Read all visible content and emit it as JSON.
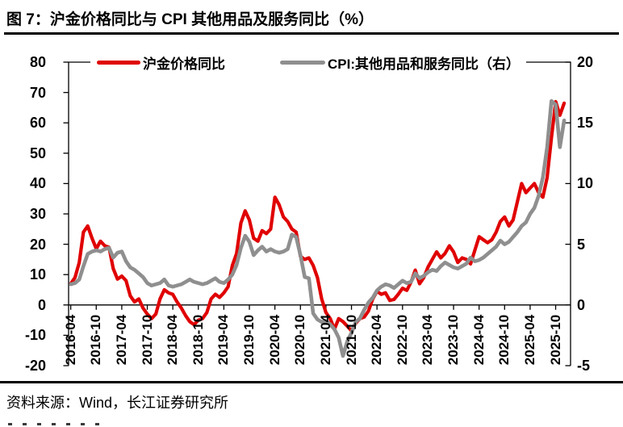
{
  "header": {
    "title": "图 7：沪金价格同比与 CPI 其他用品及服务同比（%）"
  },
  "footer": {
    "source": "资料来源：Wind，长江证券研究所"
  },
  "chart_data": {
    "type": "line",
    "title": "沪金价格同比与 CPI 其他用品及服务同比（%）",
    "x_start": "2016-04",
    "x_end": "2025-12",
    "x_interval": "monthly",
    "x_tick_labels": [
      "2016-04",
      "2016-10",
      "2017-04",
      "2017-10",
      "2018-04",
      "2018-10",
      "2019-04",
      "2019-10",
      "2020-04",
      "2020-10",
      "2021-04",
      "2021-10",
      "2022-04",
      "2022-10",
      "2023-04",
      "2023-10",
      "2024-04",
      "2024-10",
      "2025-04",
      "2025-10"
    ],
    "left_axis": {
      "range": [
        -20,
        80
      ],
      "ticks": [
        80,
        70,
        60,
        50,
        40,
        30,
        20,
        10,
        0,
        -10,
        -20
      ]
    },
    "right_axis": {
      "range": [
        -5,
        20
      ],
      "ticks": [
        20,
        15,
        10,
        5,
        0,
        -5
      ]
    },
    "grid": "off",
    "legend_position": "top-center-overlay",
    "series": [
      {
        "name": "沪金价格同比",
        "axis": "left",
        "color": "#e00000",
        "values": [
          7,
          9,
          14,
          24,
          26,
          22,
          18.5,
          21,
          19.5,
          19,
          12,
          8.5,
          9.5,
          8,
          3,
          1,
          2,
          -1,
          -3,
          -4.5,
          -3,
          2,
          5,
          4,
          3.5,
          1,
          -1,
          -3.5,
          -5.5,
          -6.5,
          -5,
          -4.5,
          -2.5,
          2,
          3.5,
          2.5,
          4,
          6,
          13,
          17,
          27,
          31,
          28,
          22,
          21,
          24.5,
          23.5,
          25,
          35.5,
          33,
          29,
          27.5,
          25,
          24,
          16,
          15,
          15.5,
          13,
          9,
          2,
          -2.5,
          -4.5,
          -8,
          -4.5,
          -5.5,
          -7,
          -8.5,
          -6,
          -4.5,
          -4,
          -2,
          2,
          4.5,
          3.5,
          4,
          1.5,
          1.8,
          3.5,
          5.5,
          4.8,
          7.5,
          11.5,
          7,
          9,
          12.5,
          15,
          17.5,
          15.5,
          17,
          19.5,
          17.5,
          14,
          15.5,
          15,
          13.5,
          18,
          22.5,
          21.5,
          20.5,
          21.5,
          24,
          27.5,
          29,
          26,
          28,
          34,
          40,
          37,
          38.5,
          40,
          37,
          35.5,
          42,
          55,
          67,
          62.5,
          66.5
        ]
      },
      {
        "name": "CPI:其他用品和服务同比（右）",
        "axis": "right",
        "color": "#8f8f8f",
        "values": [
          1.7,
          1.8,
          2.1,
          3.2,
          4.2,
          4.4,
          4.5,
          4.4,
          4.6,
          4.7,
          3.9,
          4.3,
          4.4,
          3.6,
          3.1,
          2.9,
          2.6,
          2.3,
          1.8,
          1.6,
          1.7,
          1.8,
          2.1,
          1.6,
          1.5,
          1.6,
          1.7,
          1.9,
          2.1,
          1.9,
          1.8,
          1.7,
          1.8,
          2,
          2.2,
          1.9,
          1.8,
          2.1,
          2.5,
          3.3,
          4.7,
          5.7,
          5.2,
          4.1,
          4.5,
          4.8,
          4.4,
          4.6,
          4.4,
          4.3,
          4.4,
          4.6,
          5.8,
          5.6,
          4.1,
          2.3,
          2.2,
          -0.7,
          -1.2,
          -1.4,
          -1.3,
          -1.6,
          -2,
          -2.7,
          -4.2,
          -3,
          -2.3,
          -1.4,
          -1.1,
          -0.4,
          0.2,
          0.6,
          1.2,
          1.5,
          1.7,
          1.6,
          1.4,
          1.7,
          2,
          1.8,
          1.9,
          2.6,
          2.2,
          2.4,
          2.7,
          2.9,
          2.8,
          3.2,
          3.5,
          3.3,
          3.1,
          3,
          3.2,
          3.4,
          3.9,
          3.6,
          3.7,
          3.9,
          4.2,
          4.5,
          4.8,
          5.3,
          5,
          5.2,
          5.6,
          6,
          6.5,
          6.8,
          7.5,
          8,
          9,
          10.5,
          13,
          16.8,
          16.5,
          13,
          15.2
        ]
      }
    ]
  }
}
